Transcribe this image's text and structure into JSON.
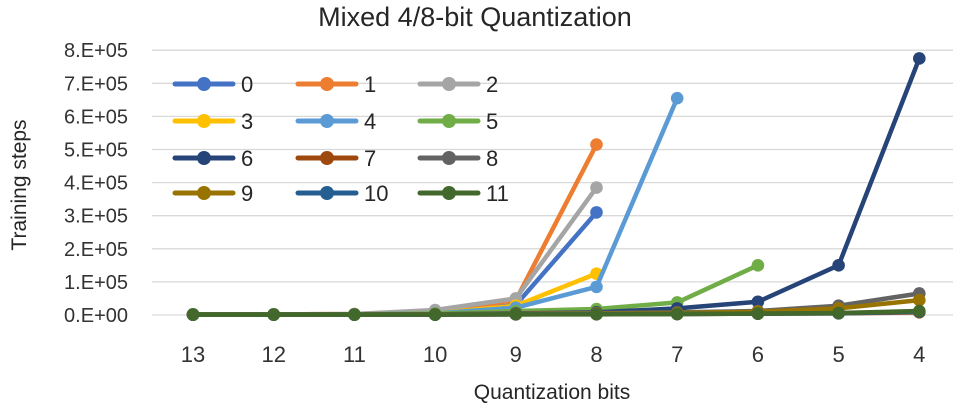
{
  "chart_data": {
    "type": "line",
    "title": "Mixed 4/8-bit Quantization",
    "xlabel": "Quantization bits",
    "ylabel": "Training steps",
    "x_categories": [
      13,
      12,
      11,
      10,
      9,
      8,
      7,
      6,
      5,
      4
    ],
    "x_axis_direction": "descending bits left to right",
    "ylim": [
      0,
      800000
    ],
    "ytick_step": 100000,
    "ytick_labels": [
      "0.E+00",
      "1.E+05",
      "2.E+05",
      "3.E+05",
      "4.E+05",
      "5.E+05",
      "6.E+05",
      "7.E+05",
      "8.E+05"
    ],
    "grid": "horizontal",
    "gridline_color": "#D9D9D9",
    "legend_position": "inside-top-left",
    "legend_rows": 4,
    "legend_cols": 3,
    "series": [
      {
        "name": "0",
        "color": "#4472C4",
        "values": [
          2000,
          2000,
          2000,
          5000,
          30000,
          310000,
          null,
          null,
          null,
          null
        ]
      },
      {
        "name": "1",
        "color": "#ED7D31",
        "values": [
          2000,
          2000,
          3000,
          10000,
          45000,
          515000,
          null,
          null,
          null,
          null
        ]
      },
      {
        "name": "2",
        "color": "#A5A5A5",
        "values": [
          2000,
          2000,
          3000,
          15000,
          50000,
          385000,
          null,
          null,
          null,
          null
        ]
      },
      {
        "name": "3",
        "color": "#FFC000",
        "values": [
          2000,
          2000,
          2000,
          5000,
          28000,
          125000,
          null,
          null,
          null,
          null
        ]
      },
      {
        "name": "4",
        "color": "#5B9BD5",
        "values": [
          2000,
          2000,
          2000,
          5000,
          22000,
          85000,
          655000,
          null,
          null,
          null
        ]
      },
      {
        "name": "5",
        "color": "#70AD47",
        "values": [
          2000,
          2000,
          2000,
          4000,
          12000,
          18000,
          38000,
          150000,
          null,
          null
        ]
      },
      {
        "name": "6",
        "color": "#264478",
        "values": [
          1000,
          1000,
          1000,
          2000,
          5000,
          8000,
          20000,
          40000,
          150000,
          775000
        ]
      },
      {
        "name": "7",
        "color": "#9E480E",
        "values": [
          1000,
          1000,
          1000,
          1000,
          2000,
          3000,
          3000,
          4000,
          5000,
          8000
        ]
      },
      {
        "name": "8",
        "color": "#636363",
        "values": [
          1000,
          1000,
          1000,
          2000,
          4000,
          6000,
          8000,
          12000,
          28000,
          65000
        ]
      },
      {
        "name": "9",
        "color": "#997300",
        "values": [
          1000,
          1000,
          1000,
          2000,
          3000,
          5000,
          6000,
          10000,
          20000,
          45000
        ]
      },
      {
        "name": "10",
        "color": "#255E91",
        "values": [
          1000,
          1000,
          1000,
          1000,
          2000,
          3000,
          3000,
          4000,
          5000,
          10000
        ]
      },
      {
        "name": "11",
        "color": "#43682B",
        "values": [
          1000,
          1000,
          1000,
          1000,
          2000,
          2000,
          3000,
          4000,
          6000,
          12000
        ]
      }
    ]
  }
}
